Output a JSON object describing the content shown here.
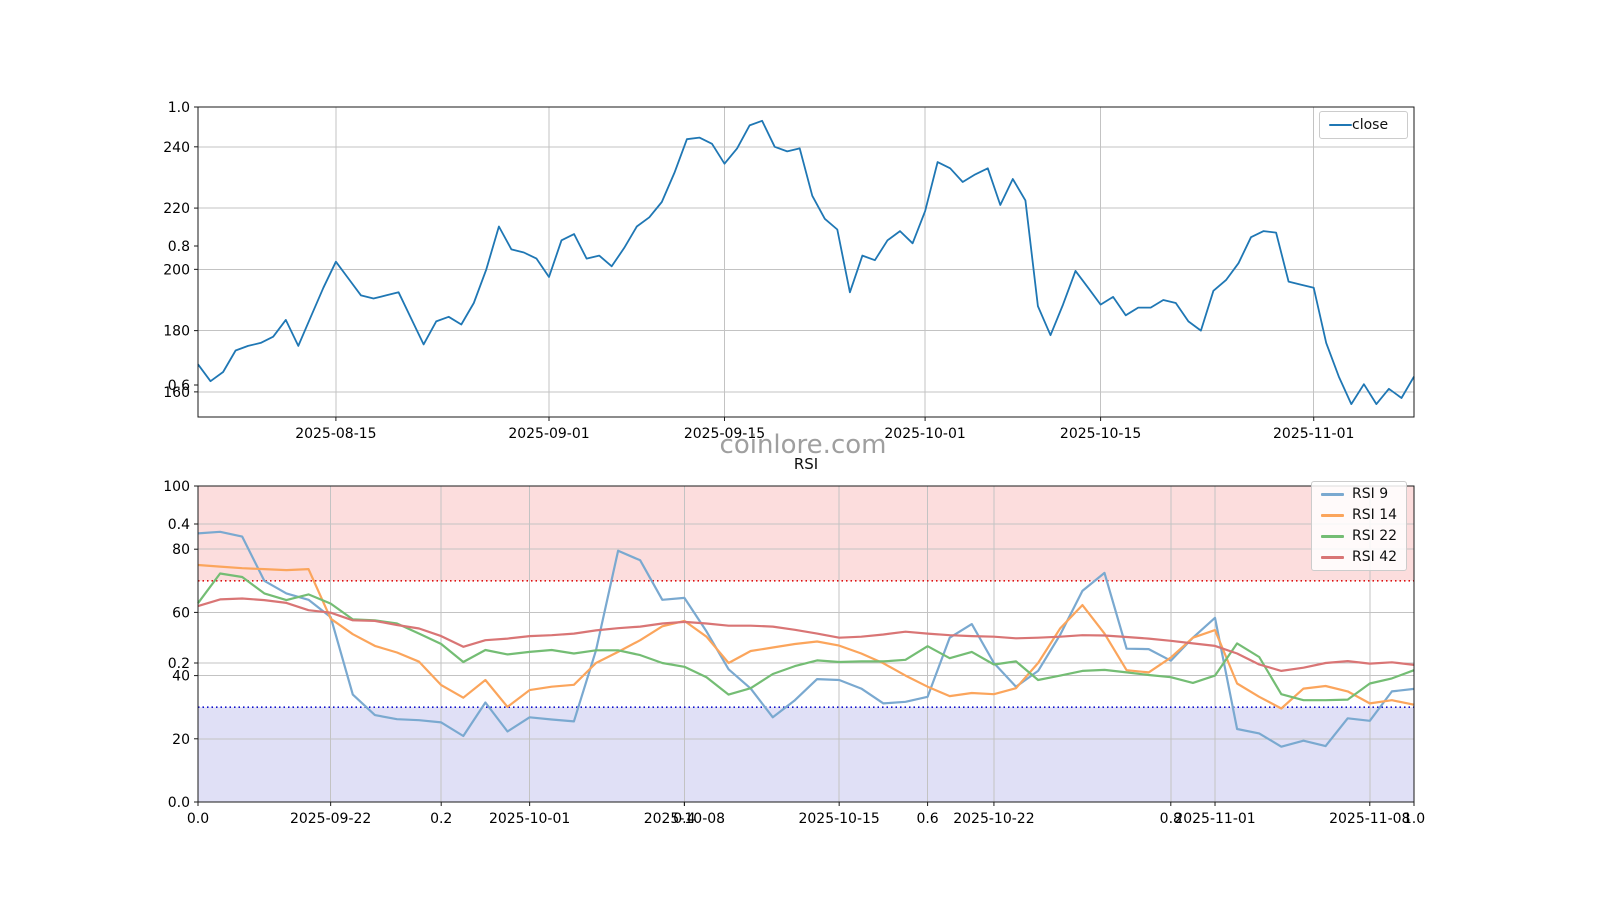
{
  "watermark": "coinlore.com",
  "rsi_panel_title": "RSI",
  "price_legend": [
    {
      "label": "close",
      "color": "#1f77b4"
    }
  ],
  "rsi_legend": [
    {
      "label": "RSI 9",
      "color": "#7aa9d0"
    },
    {
      "label": "RSI 14",
      "color": "#fba55c"
    },
    {
      "label": "RSI 22",
      "color": "#74bd74"
    },
    {
      "label": "RSI 42",
      "color": "#d97575"
    }
  ],
  "colors": {
    "close_line": "#1f77b4",
    "rsi9": "#7aa9d0",
    "rsi14": "#fba55c",
    "rsi22": "#74bd74",
    "rsi42": "#d97575",
    "overbought_band": "#fcdddd",
    "oversold_band": "#e0e0f6",
    "overbought_line": "#dd1111",
    "oversold_line": "#1111cc",
    "grid": "#c3c3c3",
    "spine": "#1a1a1a",
    "tick_text": "#000000"
  },
  "chart_data": [
    {
      "id": "price",
      "type": "line",
      "start_date": "2025-08-04",
      "x_tick_labels": [
        {
          "index": 11,
          "label": "2025-08-15"
        },
        {
          "index": 28,
          "label": "2025-09-01"
        },
        {
          "index": 42,
          "label": "2025-09-15"
        },
        {
          "index": 58,
          "label": "2025-10-01"
        },
        {
          "index": 72,
          "label": "2025-10-15"
        },
        {
          "index": 89,
          "label": "2025-11-01"
        }
      ],
      "y_ticks": [
        160,
        180,
        200,
        220,
        240
      ],
      "ylim": [
        151.8,
        253.0
      ],
      "grid": true,
      "legend_position": "upper right",
      "series": [
        {
          "name": "close",
          "color_key": "close_line",
          "width": 1.8,
          "values": [
            169,
            163.5,
            166.5,
            173.5,
            175,
            176,
            178,
            183.5,
            175,
            184.5,
            194,
            202.5,
            197,
            191.5,
            190.5,
            191.5,
            192.5,
            184,
            175.5,
            183,
            184.5,
            182,
            189,
            200,
            214,
            206.5,
            205.5,
            203.5,
            197.5,
            209.5,
            211.5,
            203.5,
            204.5,
            201,
            207,
            214,
            217,
            222,
            231.5,
            242.5,
            243,
            241,
            234.5,
            239.5,
            247,
            248.5,
            240,
            238.5,
            239.5,
            224,
            216.5,
            213,
            192.5,
            204.5,
            203,
            209.5,
            212.5,
            208.5,
            219,
            235,
            233,
            228.5,
            231,
            233,
            221,
            229.5,
            222.5,
            188,
            178.5,
            188.5,
            199.5,
            194,
            188.5,
            191,
            185,
            187.5,
            187.5,
            190,
            189,
            183,
            180,
            193,
            196.5,
            202,
            210.5,
            212.5,
            212,
            196,
            195,
            194,
            176,
            165,
            156,
            162.5,
            156,
            161,
            158,
            165
          ]
        }
      ]
    },
    {
      "id": "rsi",
      "type": "line",
      "title": "RSI",
      "start_date": "2025-09-16",
      "x_tick_labels": [
        {
          "index": 6,
          "label": "2025-09-22"
        },
        {
          "index": 15,
          "label": "2025-10-01"
        },
        {
          "index": 22,
          "label": "2025-10-08"
        },
        {
          "index": 29,
          "label": "2025-10-15"
        },
        {
          "index": 36,
          "label": "2025-10-22"
        },
        {
          "index": 46,
          "label": "2025-11-01"
        },
        {
          "index": 53,
          "label": "2025-11-08"
        }
      ],
      "y_ticks": [
        20,
        40,
        60,
        80,
        100
      ],
      "ylim": [
        0,
        100
      ],
      "grid": true,
      "overbought_level": 70,
      "oversold_level": 30,
      "bands": [
        {
          "from": 70,
          "to": 100,
          "color_key": "overbought_band"
        },
        {
          "from": 0,
          "to": 30,
          "color_key": "oversold_band"
        }
      ],
      "dotted_levels": [
        {
          "value": 70,
          "color_key": "overbought_line"
        },
        {
          "value": 30,
          "color_key": "oversold_line"
        }
      ],
      "legend_position": "upper right",
      "series": [
        {
          "name": "RSI 9",
          "color_key": "rsi9",
          "width": 2.2,
          "values": [
            85,
            85.5,
            84,
            70,
            66,
            64,
            58.5,
            34,
            27.5,
            26.2,
            25.9,
            25.2,
            20.9,
            31.5,
            22.3,
            26.8,
            26.1,
            25.5,
            48,
            79.5,
            76.5,
            64,
            64.6,
            54,
            42,
            35.9,
            26.8,
            32.2,
            38.9,
            38.6,
            35.9,
            31.2,
            31.7,
            33.3,
            52,
            56.3,
            44,
            36.5,
            41.5,
            53,
            66.8,
            72.5,
            48.5,
            48.4,
            44.7,
            52,
            58.3,
            23.1,
            21.7,
            17.5,
            19.4,
            17.7,
            26.5,
            25.7,
            35,
            35.8
          ]
        },
        {
          "name": "RSI 14",
          "color_key": "rsi14",
          "width": 2.2,
          "values": [
            75,
            74.5,
            74,
            73.7,
            73.4,
            73.7,
            58,
            53.1,
            49.4,
            47.3,
            44.4,
            37,
            33,
            38.6,
            30.1,
            35.4,
            36.5,
            37.1,
            44,
            47.5,
            51.2,
            55.6,
            57.3,
            52.3,
            44,
            47.8,
            48.9,
            50,
            50.8,
            49.5,
            47,
            43.9,
            40,
            36.5,
            33.5,
            34.5,
            34.1,
            36,
            44,
            55,
            62.3,
            53.3,
            41.7,
            41,
            45.7,
            52,
            54.4,
            37.5,
            33.3,
            29.6,
            35.9,
            36.7,
            35,
            31.2,
            32.2,
            30.8
          ]
        },
        {
          "name": "RSI 22",
          "color_key": "rsi22",
          "width": 2.2,
          "values": [
            62.9,
            72.3,
            71.2,
            66,
            63.9,
            65.7,
            62.8,
            57.8,
            57.5,
            56.5,
            53.3,
            50,
            44.3,
            48.1,
            46.7,
            47.5,
            48.1,
            47,
            48,
            48,
            46.5,
            44,
            42.8,
            39.5,
            34,
            36,
            40.5,
            43,
            44.8,
            44.3,
            44.5,
            44.5,
            45,
            49.3,
            45.5,
            47.5,
            43.5,
            44.5,
            38.6,
            40,
            41.5,
            41.8,
            41,
            40.2,
            39.5,
            37.7,
            40,
            50.2,
            45.9,
            34.1,
            32.2,
            32.2,
            32.4,
            37.5,
            39.1,
            41.7
          ]
        },
        {
          "name": "RSI 42",
          "color_key": "rsi42",
          "width": 2.2,
          "values": [
            62,
            64.1,
            64.4,
            63.9,
            63,
            60.7,
            59.9,
            57.5,
            57.3,
            56,
            54.9,
            52.5,
            49.1,
            51.2,
            51.7,
            52.5,
            52.8,
            53.3,
            54.3,
            55,
            55.5,
            56.5,
            57,
            56.5,
            55.8,
            55.8,
            55.5,
            54.5,
            53.3,
            52,
            52.3,
            53,
            53.9,
            53.3,
            52.8,
            52.5,
            52.3,
            51.8,
            52,
            52.3,
            52.8,
            52.7,
            52.2,
            51.7,
            51,
            50.2,
            49.4,
            47,
            43.5,
            41.5,
            42.5,
            44,
            44.6,
            43.8,
            44.2,
            43.4
          ]
        }
      ]
    }
  ],
  "figure_axis": {
    "x_tick_labels": [
      "0.0",
      "0.2",
      "0.4",
      "0.6",
      "0.8",
      "1.0"
    ],
    "y_tick_labels": [
      "1.0",
      "0.8",
      "0.6",
      "0.4",
      "0.2",
      "0.0"
    ]
  }
}
